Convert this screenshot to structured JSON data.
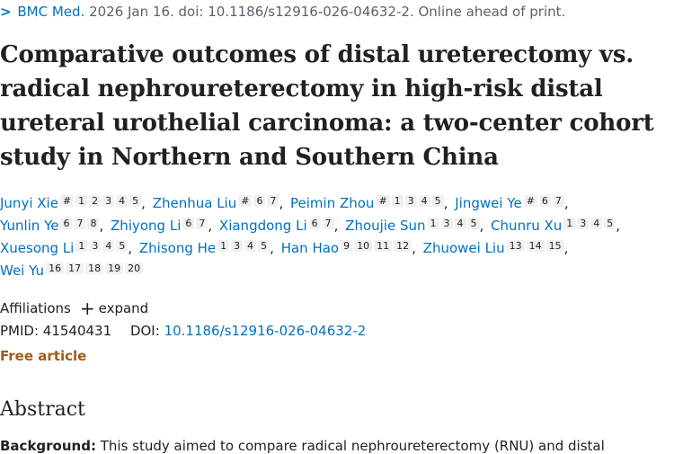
{
  "citation": {
    "journal": "BMC Med.",
    "rest": " 2026 Jan 16. doi: 10.1186/s12916-026-04632-2. Online ahead of print."
  },
  "title": "Comparative outcomes of distal ureterectomy vs. radical nephroureterectomy in high-risk distal ureteral urothelial carcinoma: a two-center cohort study in Northern and Southern China",
  "authors": [
    {
      "name": "Junyi Xie",
      "sups": [
        "#",
        "1",
        "2",
        "3",
        "4",
        "5"
      ]
    },
    {
      "name": "Zhenhua Liu",
      "sups": [
        "#",
        "6",
        "7"
      ]
    },
    {
      "name": "Peimin Zhou",
      "sups": [
        "#",
        "1",
        "3",
        "4",
        "5"
      ]
    },
    {
      "name": "Jingwei Ye",
      "sups": [
        "#",
        "6",
        "7"
      ]
    },
    {
      "name": "Yunlin Ye",
      "sups": [
        "6",
        "7",
        "8"
      ]
    },
    {
      "name": "Zhiyong Li",
      "sups": [
        "6",
        "7"
      ]
    },
    {
      "name": "Xiangdong Li",
      "sups": [
        "6",
        "7"
      ]
    },
    {
      "name": "Zhoujie Sun",
      "sups": [
        "1",
        "3",
        "4",
        "5"
      ]
    },
    {
      "name": "Chunru Xu",
      "sups": [
        "1",
        "3",
        "4",
        "5"
      ]
    },
    {
      "name": "Xuesong Li",
      "sups": [
        "1",
        "3",
        "4",
        "5"
      ]
    },
    {
      "name": "Zhisong He",
      "sups": [
        "1",
        "3",
        "4",
        "5"
      ]
    },
    {
      "name": "Han Hao",
      "sups": [
        "9",
        "10",
        "11",
        "12"
      ]
    },
    {
      "name": "Zhuowei Liu",
      "sups": [
        "13",
        "14",
        "15"
      ]
    },
    {
      "name": "Wei Yu",
      "sups": [
        "16",
        "17",
        "18",
        "19",
        "20"
      ]
    }
  ],
  "affiliations": {
    "label": "Affiliations",
    "plus": "+",
    "expand": "expand"
  },
  "ids": {
    "pmid_label": "PMID:",
    "pmid": "41540431",
    "doi_label": "DOI:",
    "doi": "10.1186/s12916-026-04632-2"
  },
  "free_article": "Free article",
  "abstract": {
    "heading": "Abstract",
    "bg_label": "Background:",
    "bg_text": " This study aimed to compare radical nephroureterectomy (RNU) and distal"
  }
}
